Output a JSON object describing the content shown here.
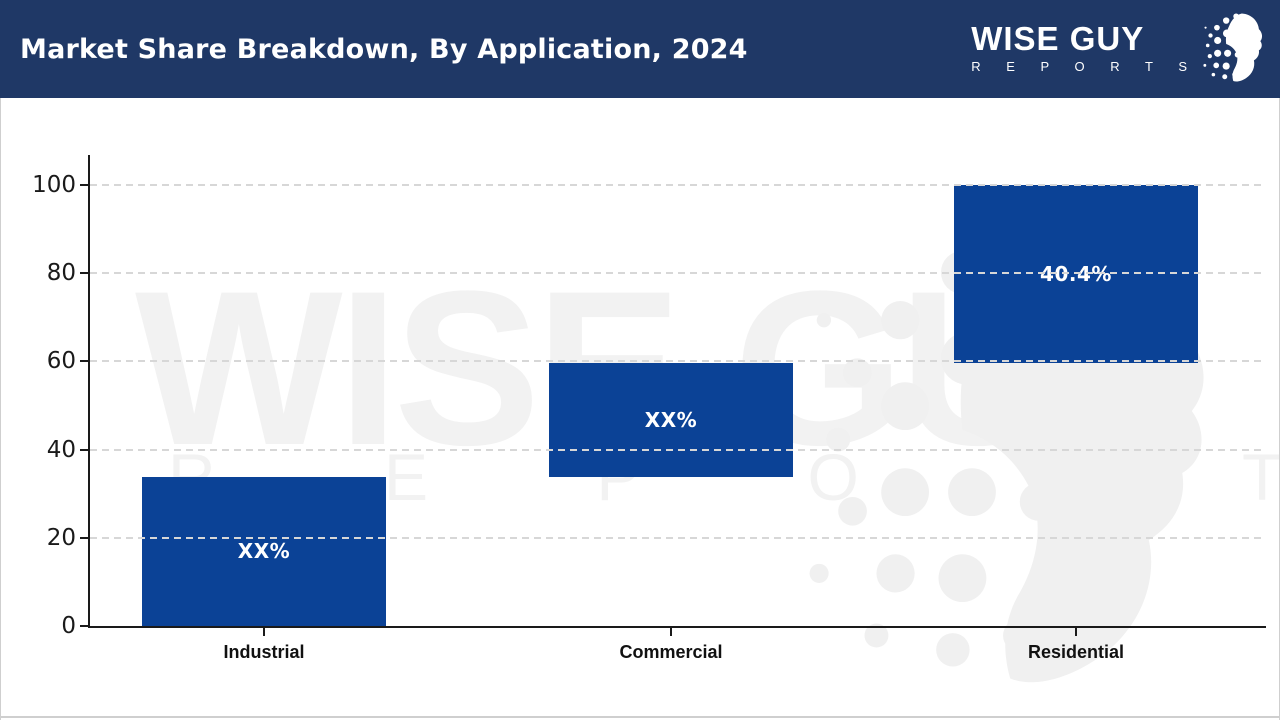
{
  "header": {
    "title": "Market Share Breakdown, By Application, 2024",
    "logo": {
      "line1": "WISE GUY",
      "line2": "R E P O R T S"
    }
  },
  "watermark": {
    "line1": "WISE GUY",
    "line2": "R E P O R T S"
  },
  "chart_data": {
    "type": "bar",
    "subtype": "floating-segment-waterfall",
    "title": "Market Share Breakdown, By Application, 2024",
    "categories": [
      "Industrial",
      "Commercial",
      "Residential"
    ],
    "segments": [
      {
        "category": "Industrial",
        "start": 0,
        "end": 33.8,
        "label": "XX%"
      },
      {
        "category": "Commercial",
        "start": 33.8,
        "end": 59.6,
        "label": "XX%"
      },
      {
        "category": "Residential",
        "start": 59.6,
        "end": 100,
        "label": "40.4%"
      }
    ],
    "ylim": [
      0,
      100
    ],
    "yticks": [
      0,
      20,
      40,
      60,
      80,
      100
    ],
    "xlabel": "",
    "ylabel": "",
    "grid": "horizontal-dashed",
    "legend": "none",
    "colors": {
      "bar": "#0b4296",
      "bar_label": "#ffffff",
      "grid": "#d7d7d7",
      "axis": "#1a1a1a",
      "header_bg": "#1f3866",
      "watermark": "#f2f2f2"
    }
  }
}
